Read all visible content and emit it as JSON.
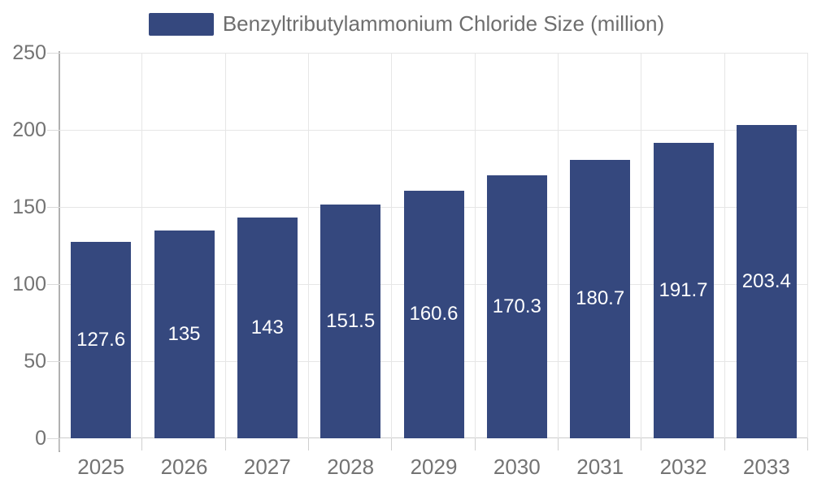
{
  "legend": {
    "label": "Benzyltributylammonium Chloride Size (million)"
  },
  "colors": {
    "bar": "#35487e",
    "value_label": "#ffffff",
    "axis_label": "#737373",
    "legend_label": "#6e6e6e",
    "gridline": "#e6e6e6",
    "axis_line": "#b0b0b0"
  },
  "chart_data": {
    "type": "bar",
    "title": "",
    "xlabel": "",
    "ylabel": "",
    "categories": [
      "2025",
      "2026",
      "2027",
      "2028",
      "2029",
      "2030",
      "2031",
      "2032",
      "2033"
    ],
    "series": [
      {
        "name": "Benzyltributylammonium Chloride Size (million)",
        "values": [
          127.6,
          135,
          143,
          151.5,
          160.6,
          170.3,
          180.7,
          191.7,
          203.4
        ],
        "value_labels": [
          "127.6",
          "135",
          "143",
          "151.5",
          "160.6",
          "170.3",
          "180.7",
          "191.7",
          "203.4"
        ]
      }
    ],
    "ylim": [
      0,
      250
    ],
    "yticks": [
      0,
      50,
      100,
      150,
      200,
      250
    ],
    "ytick_labels": [
      "0",
      "50",
      "100",
      "150",
      "200",
      "250"
    ],
    "grid": true,
    "value_labels_position": "inside-center",
    "legend_position": "top-center"
  }
}
